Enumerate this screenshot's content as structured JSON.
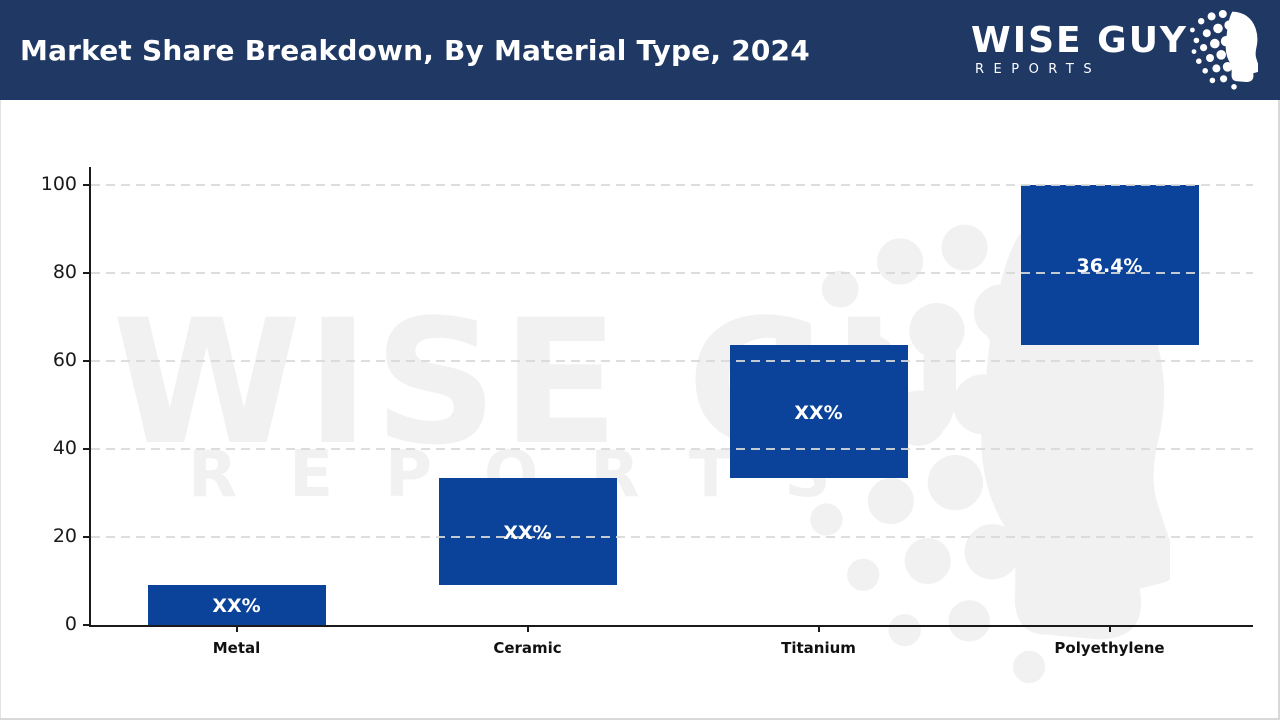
{
  "header": {
    "title": "Market Share Breakdown, By Material Type, 2024",
    "logo": {
      "name_top": "WISE GUY",
      "name_bottom": "REPORTS"
    }
  },
  "watermark": {
    "text_top": "WISE GUY",
    "text_bottom": "REPORTS"
  },
  "colors": {
    "header_bg": "#1f3864",
    "bar_blue": "#0a4399",
    "grid": "#d9d9d9",
    "axis": "#1a1a1a",
    "watermark": "#f1f1f1",
    "text_on_bar": "#ffffff"
  },
  "chart_data": {
    "type": "bar",
    "subtype": "waterfall",
    "title": "Market Share Breakdown, By Material Type, 2024",
    "categories": [
      "Metal",
      "Ceramic",
      "Titanium",
      "Polyethylene"
    ],
    "segments": [
      {
        "category": "Metal",
        "base": 0,
        "top": 9.1,
        "label": "XX%"
      },
      {
        "category": "Ceramic",
        "base": 9.1,
        "top": 33.4,
        "label": "XX%"
      },
      {
        "category": "Titanium",
        "base": 33.4,
        "top": 63.6,
        "label": "XX%"
      },
      {
        "category": "Polyethylene",
        "base": 63.6,
        "top": 100,
        "label": "36.4%"
      }
    ],
    "ylim": [
      0,
      100
    ],
    "yticks": [
      0,
      20,
      40,
      60,
      80,
      100
    ],
    "xlabel": "",
    "ylabel": "",
    "grid": "horizontal-dashed",
    "legend": "none",
    "bar_color": "#0a4399"
  }
}
